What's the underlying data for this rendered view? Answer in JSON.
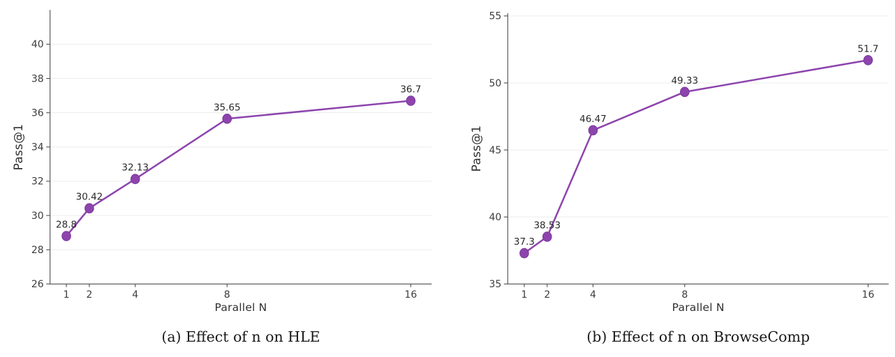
{
  "figure": {
    "background": "#ffffff",
    "accent_color": "#8d44ad",
    "grid_color": "#ececec",
    "spine_color": "#4d4d4d",
    "tick_text_color": "#3d3d3d",
    "point_label_color": "#2a2a2a"
  },
  "chart_data": [
    {
      "type": "line",
      "caption": "(a) Effect of n on HLE",
      "xlabel": "Parallel N",
      "ylabel": "Pass@1",
      "x": [
        1,
        2,
        4,
        8,
        16
      ],
      "values": [
        28.8,
        30.42,
        32.13,
        35.65,
        36.7
      ],
      "point_labels": [
        "28.8",
        "30.42",
        "32.13",
        "35.65",
        "36.7"
      ],
      "xticks": [
        "1",
        "2",
        "4",
        "8",
        "16"
      ],
      "xtick_values": [
        1,
        2,
        4,
        8,
        16
      ],
      "yticks": [
        "26",
        "28",
        "30",
        "32",
        "34",
        "36",
        "38",
        "40"
      ],
      "ytick_values": [
        26,
        28,
        30,
        32,
        34,
        36,
        38,
        40
      ],
      "xlim": [
        0.29,
        16.91
      ],
      "ylim": [
        26,
        42
      ],
      "grid": "horizontal",
      "legend": "none",
      "line_color": "#8d44ad",
      "marker_color": "#8d44ad"
    },
    {
      "type": "line",
      "caption": "(b) Effect of n on BrowseComp",
      "xlabel": "Parallel N",
      "ylabel": "Pass@1",
      "x": [
        1,
        2,
        4,
        8,
        16
      ],
      "values": [
        37.3,
        38.53,
        46.47,
        49.33,
        51.7
      ],
      "point_labels": [
        "37.3",
        "38.53",
        "46.47",
        "49.33",
        "51.7"
      ],
      "xticks": [
        "1",
        "2",
        "4",
        "8",
        "16"
      ],
      "xtick_values": [
        1,
        2,
        4,
        8,
        16
      ],
      "yticks": [
        "35",
        "40",
        "45",
        "50",
        "55"
      ],
      "ytick_values": [
        35,
        40,
        45,
        50,
        55
      ],
      "xlim": [
        0.28,
        16.9
      ],
      "ylim": [
        35,
        55.2
      ],
      "grid": "horizontal",
      "legend": "none",
      "line_color": "#8d44ad",
      "marker_color": "#8d44ad"
    }
  ]
}
